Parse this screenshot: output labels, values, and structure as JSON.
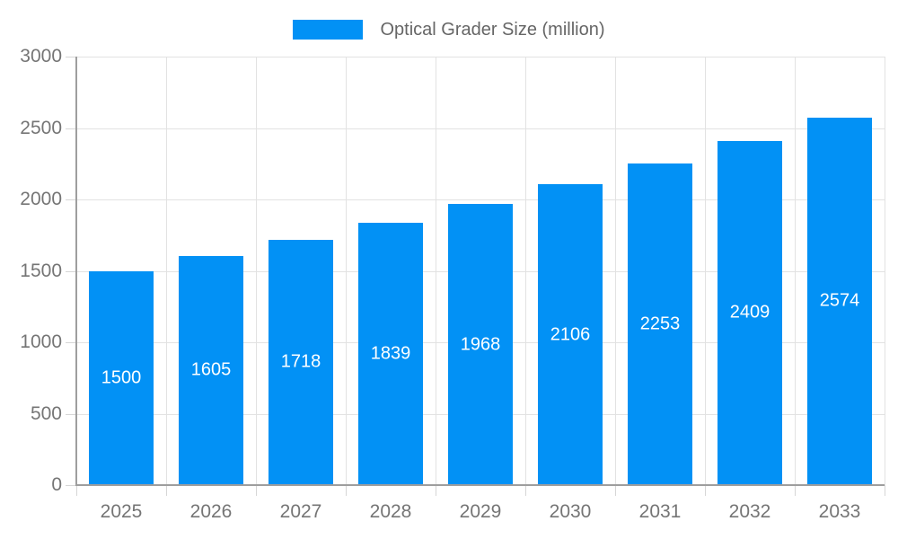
{
  "chart_data": {
    "type": "bar",
    "title": "Optical Grader Size (million)",
    "categories": [
      "2025",
      "2026",
      "2027",
      "2028",
      "2029",
      "2030",
      "2031",
      "2032",
      "2033"
    ],
    "values": [
      1500,
      1605,
      1718,
      1839,
      1968,
      2106,
      2253,
      2409,
      2574
    ],
    "series": [
      {
        "name": "Optical Grader Size (million)",
        "values": [
          1500,
          1605,
          1718,
          1839,
          1968,
          2106,
          2253,
          2409,
          2574
        ]
      }
    ],
    "xlabel": "",
    "ylabel": "",
    "ylim": [
      0,
      3000
    ],
    "yticks": [
      0,
      500,
      1000,
      1500,
      2000,
      2500,
      3000
    ],
    "grid": true,
    "legend_position": "top",
    "value_labels": "inside-center"
  },
  "colors": {
    "bar": "#0291f5",
    "grid": "#e2e2e2",
    "axis": "#9e9e9e",
    "tick": "#d6d6d6",
    "tick_label": "#757575",
    "legend_text": "#666666",
    "value_label": "#ffffff",
    "background": "#ffffff"
  }
}
